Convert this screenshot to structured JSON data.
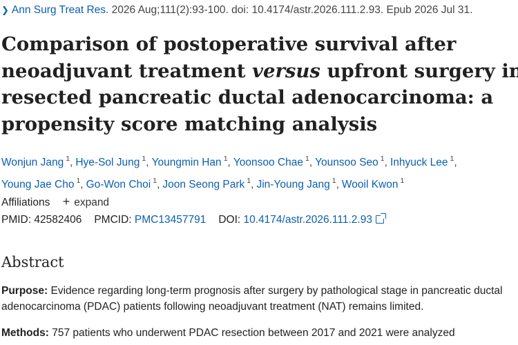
{
  "citation": {
    "journal": "Ann Surg Treat Res.",
    "details": "2026 Aug;111(2):93-100. doi: 10.4174/astr.2026.111.2.93. Epub 2026 Jul 31."
  },
  "title": {
    "line1": "Comparison of postoperative survival after",
    "line2_before": "neoadjuvant treatment ",
    "line2_em": "versus",
    "line2_after": " upfront surgery in",
    "line3": "resected pancreatic ductal adenocarcinoma: a",
    "line4": "propensity score matching analysis"
  },
  "authors": {
    "row1": [
      {
        "name": "Wonjun Jang",
        "aff": "1"
      },
      {
        "name": "Hye-Sol Jung",
        "aff": "1"
      },
      {
        "name": "Youngmin Han",
        "aff": "1"
      },
      {
        "name": "Yoonsoo Chae",
        "aff": "1"
      },
      {
        "name": "Younsoo Seo",
        "aff": "1"
      },
      {
        "name": "Inhyuck Lee",
        "aff": "1"
      }
    ],
    "row2": [
      {
        "name": "Young Jae Cho",
        "aff": "1"
      },
      {
        "name": "Go-Won Choi",
        "aff": "1"
      },
      {
        "name": "Joon Seong Park",
        "aff": "1"
      },
      {
        "name": "Jin-Young Jang",
        "aff": "1"
      },
      {
        "name": "Wooil Kwon",
        "aff": "1"
      }
    ],
    "separator": ","
  },
  "affiliations": {
    "label": "Affiliations",
    "expand_label": "expand"
  },
  "identifiers": {
    "pmid_label": "PMID:",
    "pmid": "42582406",
    "pmcid_label": "PMCID:",
    "pmcid": "PMC13457791",
    "doi_label": "DOI:",
    "doi": "10.4174/astr.2026.111.2.93"
  },
  "abstract": {
    "heading": "Abstract",
    "purpose_label": "Purpose:",
    "purpose_text": " Evidence regarding long-term prognosis after surgery by pathological stage in pancreatic ductal adenocarcinoma (PDAC) patients following neoadjuvant treatment (NAT) remains limited.",
    "methods_label": "Methods:",
    "methods_text": " 757 patients who underwent PDAC resection between 2017 and 2021 were analyzed"
  },
  "colors": {
    "link": "#0b5fae",
    "text": "#212121",
    "background": "#ffffff"
  },
  "icons": {
    "journal_link": "chevron-right-icon",
    "expand": "plus-icon",
    "doi_external": "external-link-icon"
  }
}
